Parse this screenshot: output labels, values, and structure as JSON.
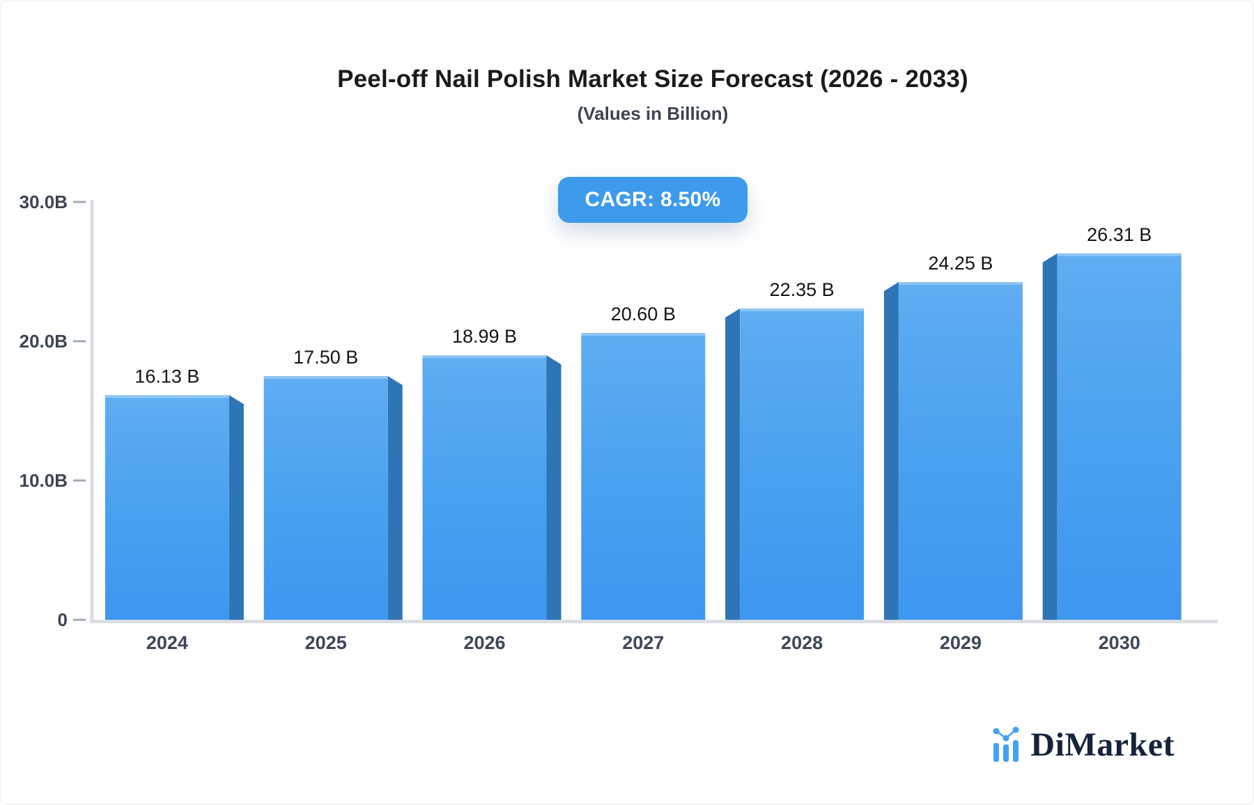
{
  "header": {
    "title": "Peel-off Nail Polish Market Size Forecast (2026 - 2033)",
    "subtitle": "(Values in Billion)"
  },
  "badge": {
    "label": "CAGR: 8.50%",
    "bg_color": "#3E9AEC",
    "text_color": "#FFFFFF"
  },
  "chart_data": {
    "type": "bar",
    "title": "Peel-off Nail Polish Market Size Forecast (2026 - 2033)",
    "subtitle": "(Values in Billion)",
    "categories": [
      "2024",
      "2025",
      "2026",
      "2027",
      "2028",
      "2029",
      "2030"
    ],
    "values": [
      16.13,
      17.5,
      18.99,
      20.6,
      22.35,
      24.25,
      26.31
    ],
    "value_labels": [
      "16.13 B",
      "17.50 B",
      "18.99 B",
      "20.60 B",
      "22.35 B",
      "24.25 B",
      "26.31 B"
    ],
    "xlabel": "",
    "ylabel": "",
    "ylim": [
      0,
      30
    ],
    "y_ticks": [
      {
        "value": 0,
        "label": "0"
      },
      {
        "value": 10,
        "label": "10.0B"
      },
      {
        "value": 20,
        "label": "20.0B"
      },
      {
        "value": 30,
        "label": "30.0B"
      }
    ],
    "grid": false,
    "legend_position": "none",
    "style": "3d-perspective-bars",
    "colors": {
      "bar_face_top": "#60ADF1",
      "bar_face_bottom": "#3E97F0",
      "bar_side": "#2E75B6",
      "axis_line": "#DADDE2",
      "tick_dash": "#A3ABB6",
      "y_tick_text": "#3C4454",
      "x_tick_text": "#3E4659",
      "value_label_text": "#141414"
    }
  },
  "footer": {
    "brand": "DiMarket",
    "brand_color": "#15233D",
    "icon_color": "#42A1F5"
  }
}
